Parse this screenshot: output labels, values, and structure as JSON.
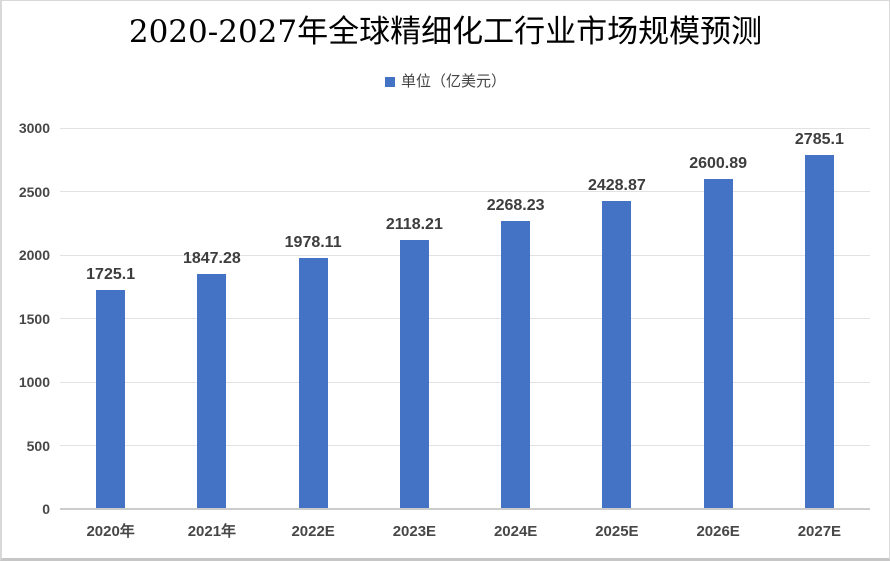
{
  "title": "2020-2027年全球精细化工行业市场规模预测",
  "legend": {
    "label": "单位（亿美元）",
    "swatch_color": "#4472C4"
  },
  "chart_data": {
    "type": "bar",
    "title": "2020-2027年全球精细化工行业市场规模预测",
    "series_name": "单位（亿美元）",
    "categories": [
      "2020年",
      "2021年",
      "2022E",
      "2023E",
      "2024E",
      "2025E",
      "2026E",
      "2027E"
    ],
    "values": [
      1725.1,
      1847.28,
      1978.11,
      2118.21,
      2268.23,
      2428.87,
      2600.89,
      2785.1
    ],
    "value_labels": [
      "1725.1",
      "1847.28",
      "1978.11",
      "2118.21",
      "2268.23",
      "2428.87",
      "2600.89",
      "2785.1"
    ],
    "xlabel": "",
    "ylabel": "",
    "ylim": [
      0,
      3000
    ],
    "ytick_interval": 500,
    "yticks": [
      0,
      500,
      1000,
      1500,
      2000,
      2500,
      3000
    ],
    "bar_color": "#4472C4",
    "grid": true,
    "legend_position": "top",
    "gridline_color": "#e2e2e2",
    "axis_line_color": "#cccccc",
    "label_color": "#3d3d3d"
  }
}
